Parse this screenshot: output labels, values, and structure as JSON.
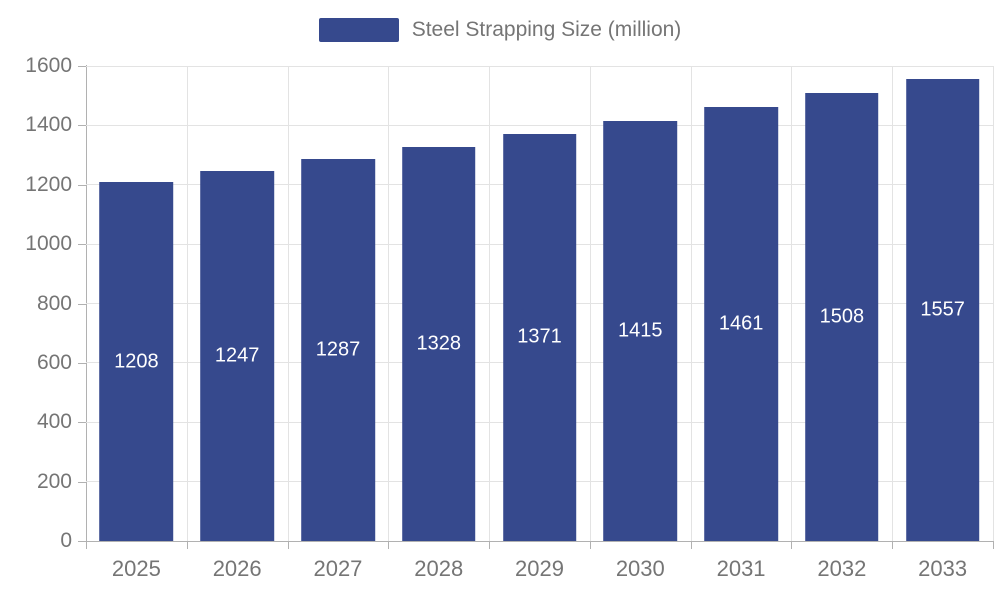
{
  "legend": {
    "label": "Steel Strapping Size (million)",
    "swatch_color": "#36498D"
  },
  "chart_data": {
    "type": "bar",
    "title": "Steel Strapping Size (million)",
    "categories": [
      "2025",
      "2026",
      "2027",
      "2028",
      "2029",
      "2030",
      "2031",
      "2032",
      "2033"
    ],
    "values": [
      1208,
      1247,
      1287,
      1328,
      1371,
      1415,
      1461,
      1508,
      1557
    ],
    "xlabel": "",
    "ylabel": "",
    "ylim": [
      0,
      1600
    ],
    "yticks": [
      0,
      200,
      400,
      600,
      800,
      1000,
      1200,
      1400,
      1600
    ],
    "grid": "on",
    "legend_position": "top-center",
    "bar_color": "#36498D",
    "bar_label_color": "#ffffff",
    "axis_color": "#b1b1b1",
    "grid_color": "#e3e3e3",
    "tick_text_color": "#757575"
  }
}
